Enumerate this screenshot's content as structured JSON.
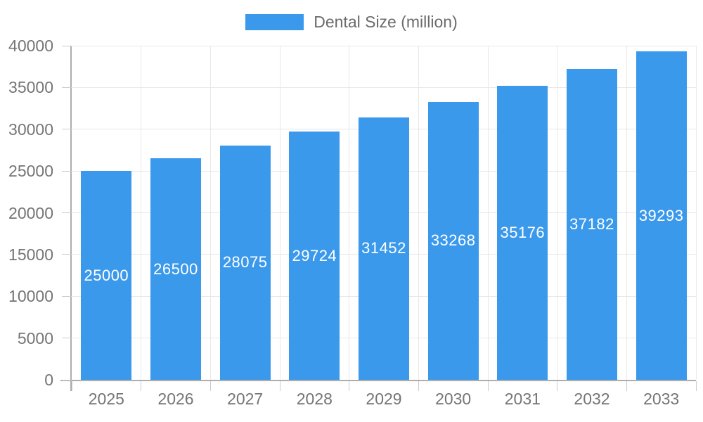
{
  "chart_data": {
    "type": "bar",
    "title": "Dental Size (million)",
    "legend": {
      "label": "Dental Size (million)",
      "position": "top"
    },
    "categories": [
      "2025",
      "2026",
      "2027",
      "2028",
      "2029",
      "2030",
      "2031",
      "2032",
      "2033"
    ],
    "series": [
      {
        "name": "Dental Size (million)",
        "values": [
          25000,
          26500,
          28075,
          29724,
          31452,
          33268,
          35176,
          37182,
          39293
        ]
      }
    ],
    "xlabel": "",
    "ylabel": "",
    "ylim": [
      0,
      40000
    ],
    "ytick_step": 5000,
    "ytick_labels": [
      "0",
      "5000",
      "10000",
      "15000",
      "20000",
      "25000",
      "30000",
      "35000",
      "40000"
    ],
    "grid": true,
    "value_label_position": "inside-center",
    "colors": {
      "bar": "#3b99ec",
      "grid": "#e8e8e8",
      "axis": "#adadad",
      "tick": "#cccccc",
      "axis_text": "#757575",
      "legend_text": "#6b6b6b",
      "value_text": "#ffffff",
      "background": "#ffffff"
    }
  }
}
